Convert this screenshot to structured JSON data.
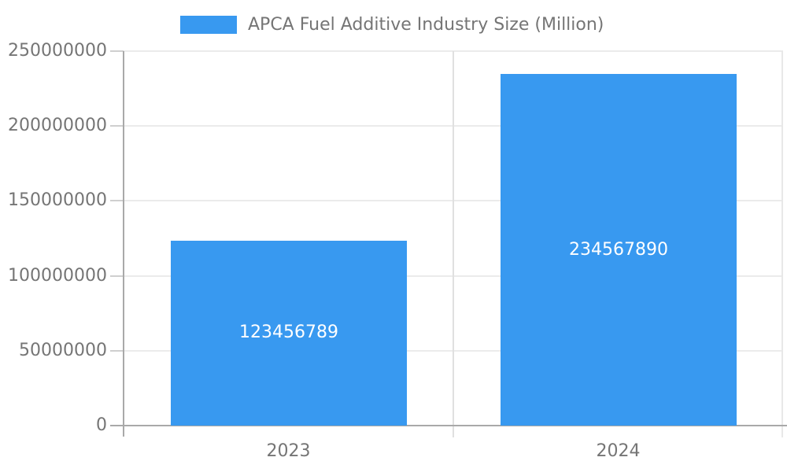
{
  "legend": {
    "label": "APCA Fuel Additive Industry Size (Million)"
  },
  "chart_data": {
    "type": "bar",
    "title": "APCA Fuel Additive Industry Size (Million)",
    "categories": [
      "2023",
      "2024"
    ],
    "values": [
      123456789,
      234567890
    ],
    "bar_value_labels": [
      "123456789",
      "234567890"
    ],
    "xlabel": "",
    "ylabel": "",
    "ylim": [
      0,
      250000000
    ],
    "yticks": [
      0,
      50000000,
      100000000,
      150000000,
      200000000,
      250000000
    ],
    "ytick_labels": [
      "0",
      "50000000",
      "100000000",
      "150000000",
      "200000000",
      "250000000"
    ],
    "grid": true,
    "legend_position": "top",
    "colors": {
      "series": "#3899F0",
      "axis_line": "#a9a9a9",
      "grid_line": "#ebebeb",
      "tick_mark": "#cfcfcf",
      "text": "#757575",
      "bar_label_text": "#ffffff",
      "background": "#ffffff"
    }
  }
}
